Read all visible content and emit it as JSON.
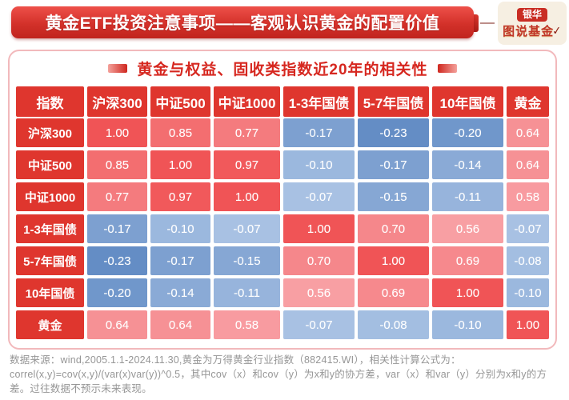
{
  "header": {
    "title": "黄金ETF投资注意事项——客观认识黄金的配置价值",
    "brand": {
      "badge": "银华",
      "name": "图说基金",
      "check": "✓"
    }
  },
  "subtitle": "黄金与权益、固收类指数近20年的相关性",
  "chart_data": {
    "type": "heatmap",
    "title": "黄金与权益、固收类指数近20年的相关性",
    "corner_label": "指数",
    "columns": [
      "沪深300",
      "中证500",
      "中证1000",
      "1-3年国债",
      "5-7年国债",
      "10年国债",
      "黄金"
    ],
    "rows": [
      "沪深300",
      "中证500",
      "中证1000",
      "1-3年国债",
      "5-7年国债",
      "10年国债",
      "黄金"
    ],
    "matrix": [
      [
        1.0,
        0.85,
        0.77,
        -0.17,
        -0.23,
        -0.2,
        0.64
      ],
      [
        0.85,
        1.0,
        0.97,
        -0.1,
        -0.17,
        -0.14,
        0.64
      ],
      [
        0.77,
        0.97,
        1.0,
        -0.07,
        -0.15,
        -0.11,
        0.58
      ],
      [
        -0.17,
        -0.1,
        -0.07,
        1.0,
        0.7,
        0.56,
        -0.07
      ],
      [
        -0.23,
        -0.17,
        -0.15,
        0.7,
        1.0,
        0.69,
        -0.08
      ],
      [
        -0.2,
        -0.14,
        -0.11,
        0.56,
        0.69,
        1.0,
        -0.1
      ],
      [
        0.64,
        0.64,
        0.58,
        -0.07,
        -0.08,
        -0.1,
        1.0
      ]
    ],
    "value_decimals": 2,
    "colorscale": {
      "positive_low": "#F9A9AE",
      "positive_high": "#F05456",
      "negative_low": "#B0C8E7",
      "negative_high": "#5B86C1",
      "header_bg": "#DF362E",
      "header_text": "#FFFFFF"
    },
    "legend_position": "none",
    "grid": false
  },
  "footer": {
    "note": "数据来源：wind,2005.1.1-2024.11.30,黄金为万得黄金行业指数（882415.WI），相关性计算公式为：correl(x,y)=cov(x,y)/(var(x)var(y))^0.5，其中cov（x）和cov（y）为x和y的协方差，var（x）和var（y）分别为x和y的方差。过往数据不预示未来表现。"
  },
  "colors": {
    "accent_red": "#D6271F",
    "card_border": "#F2B9BC",
    "banner_top": "#EE5049",
    "banner_bottom": "#C0231D",
    "footnote_gray": "#969696",
    "logo_cream": "#F6EFE2"
  }
}
